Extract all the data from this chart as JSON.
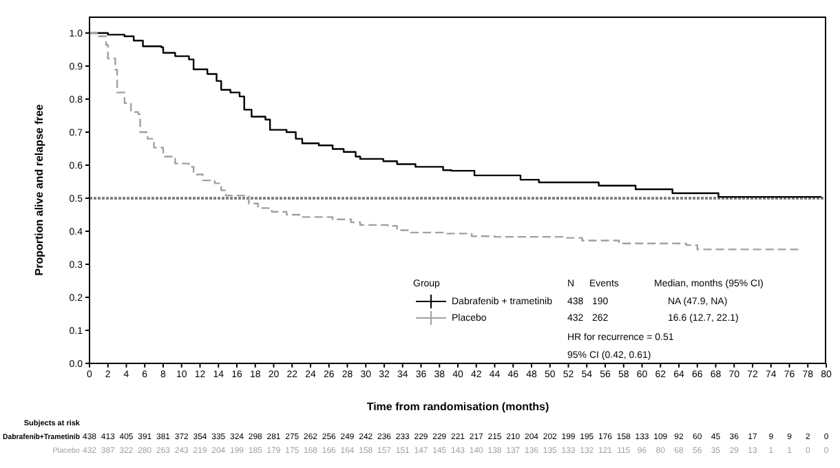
{
  "chart_data": {
    "type": "step",
    "xlabel": "Time from randomisation (months)",
    "ylabel": "Proportion alive and relapse free",
    "legend_title": "Group",
    "legend": "bottom right",
    "xlim": [
      0,
      80
    ],
    "xticks": [
      0,
      2,
      4,
      6,
      8,
      10,
      12,
      14,
      16,
      18,
      20,
      22,
      24,
      26,
      28,
      30,
      32,
      34,
      36,
      38,
      40,
      42,
      44,
      46,
      48,
      50,
      52,
      54,
      56,
      58,
      60,
      62,
      64,
      66,
      68,
      70,
      72,
      74,
      76,
      78,
      80
    ],
    "ylim": [
      0,
      1.05
    ],
    "yticks": [
      {
        "value": 0,
        "label": "0.0"
      },
      {
        "value": 0.1,
        "label": "0.1"
      },
      {
        "value": 0.2,
        "label": "0.2"
      },
      {
        "value": 0.3,
        "label": "0.3"
      },
      {
        "value": 0.4,
        "label": "0.4"
      },
      {
        "value": 0.5,
        "label": "0.5"
      },
      {
        "value": 0.6,
        "label": "0.6"
      },
      {
        "value": 0.7,
        "label": "0.7"
      },
      {
        "value": 0.8,
        "label": "0.8"
      },
      {
        "value": 0.9,
        "label": "0.9"
      },
      {
        "value": 1,
        "label": "1.0"
      }
    ],
    "ref_lines": [
      {
        "axis": "y",
        "value": 0.5,
        "color": "#808080",
        "line_style": "dotted"
      }
    ],
    "series": [
      {
        "name": "Dabrafenib + trametinib",
        "color": "#000000",
        "line_style": "solid",
        "x": [
          0,
          2,
          3.8,
          4.8,
          5.8,
          7.8,
          8,
          9.3,
          10.8,
          11.3,
          12.8,
          13.8,
          14.3,
          15.3,
          16.3,
          16.8,
          17.6,
          19.1,
          19.6,
          21.4,
          22.4,
          23.1,
          24.9,
          26.4,
          27.6,
          28.9,
          29.4,
          31.9,
          33.4,
          35.4,
          38.4,
          39.3,
          41.8,
          46.8,
          48.8,
          55.3,
          59.3,
          63.3,
          68.3,
          79.5
        ],
        "values": [
          1,
          0.995,
          0.99,
          0.977,
          0.96,
          0.957,
          0.94,
          0.93,
          0.92,
          0.89,
          0.876,
          0.855,
          0.828,
          0.82,
          0.808,
          0.768,
          0.747,
          0.738,
          0.707,
          0.7,
          0.68,
          0.666,
          0.66,
          0.649,
          0.64,
          0.626,
          0.619,
          0.612,
          0.603,
          0.595,
          0.585,
          0.583,
          0.569,
          0.556,
          0.548,
          0.538,
          0.527,
          0.515,
          0.504,
          0.504
        ]
      },
      {
        "name": "Placebo",
        "color": "#a0a0a0",
        "line_style": "dashed",
        "x": [
          0,
          1,
          1.8,
          2,
          2.8,
          3,
          3.8,
          4.5,
          5.3,
          5.5,
          6.3,
          7,
          8,
          9.3,
          10.8,
          11.3,
          12.3,
          13.6,
          14.3,
          14.8,
          16.3,
          17.3,
          18.3,
          19.8,
          21.4,
          22.9,
          26.4,
          28.4,
          29.4,
          32.4,
          33.4,
          34.9,
          38.4,
          41.5,
          44,
          51.5,
          53.5,
          57.5,
          64.8,
          66,
          77
        ],
        "values": [
          1,
          0.99,
          0.964,
          0.923,
          0.889,
          0.82,
          0.788,
          0.761,
          0.754,
          0.7,
          0.68,
          0.653,
          0.626,
          0.605,
          0.595,
          0.572,
          0.554,
          0.545,
          0.524,
          0.508,
          0.508,
          0.484,
          0.47,
          0.459,
          0.45,
          0.443,
          0.436,
          0.427,
          0.419,
          0.416,
          0.403,
          0.396,
          0.393,
          0.385,
          0.383,
          0.38,
          0.372,
          0.363,
          0.358,
          0.345,
          0.345
        ]
      }
    ],
    "annotations": [
      "N",
      "Events",
      "Median, months (95% CI)",
      "438",
      "190",
      "NA (47.9, NA)",
      "432",
      "262",
      "16.6 (12.7, 22.1)",
      "HR for recurrence = 0.51",
      "95% CI (0.42, 0.61)",
      "Subjects at risk",
      "Dabrafenib+Trametinib",
      "Placebo",
      "438 413 405 391 381 372 354 335 324 298 281 275 262 256 249 242 236 233 229 229 221 217 215 210 204 202 199 195 176 158 133 109 92 60 45 36 17 9 9 2 0",
      "432 387 322 280 263 243 219 204 199 185 179 175 168 166 164 158 157 151 147 145 143 140 138 137 136 135 133 132 121 115 96 80 68 56 35 29 13 1 1 0 0"
    ]
  }
}
